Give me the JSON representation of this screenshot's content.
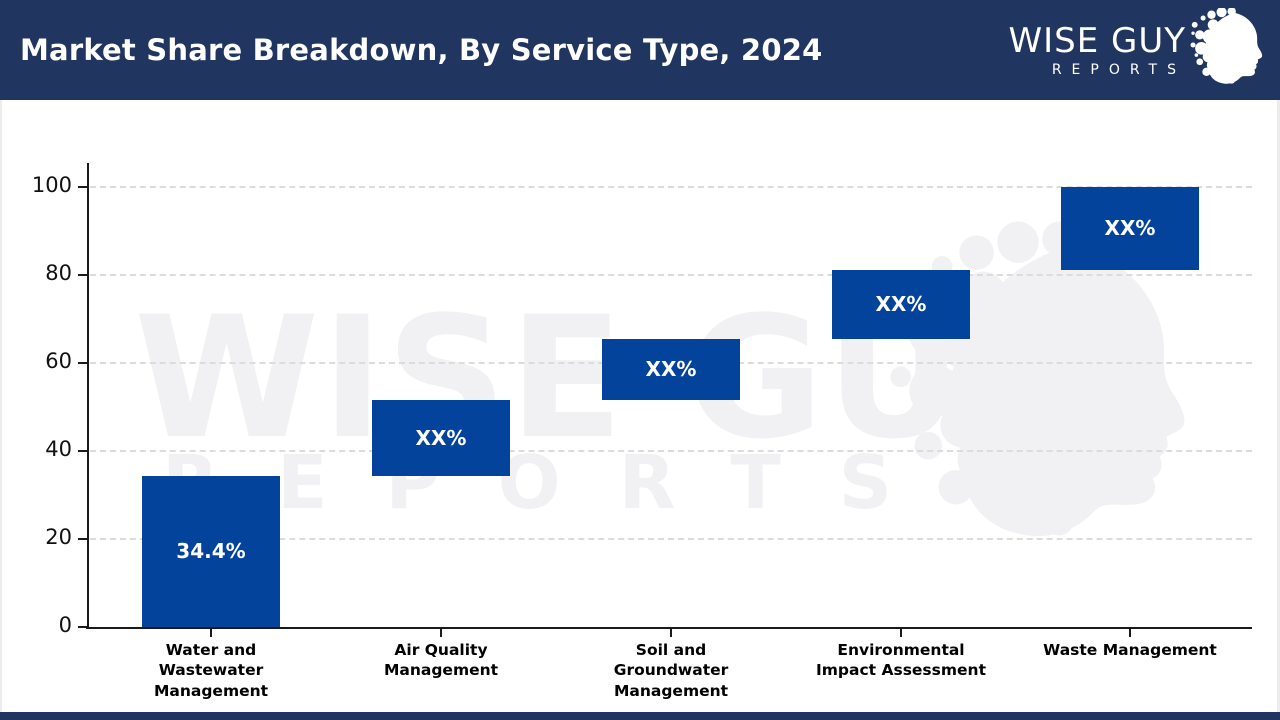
{
  "header": {
    "title": "Market Share Breakdown, By Service Type, 2024",
    "logo": {
      "name": "WISE GUY",
      "tagline": "REPORTS"
    }
  },
  "watermark": {
    "name": "WISE GUY",
    "tagline": "REPORTS"
  },
  "colors": {
    "header_bg": "#213561",
    "footer_bg": "#213561",
    "logo_fg": "#ffffff",
    "bar": "#04439b",
    "bar_label": "#ffffff",
    "grid": "#dcdcdc",
    "axis": "#1a1a1a",
    "tick_label": "#111111",
    "category_label": "#000000",
    "watermark": "#f1f1f4"
  },
  "chart_data": {
    "type": "bar",
    "variant": "waterfall",
    "title": "Market Share Breakdown, By Service Type, 2024",
    "categories": [
      "Water and\nWastewater\nManagement",
      "Air Quality\nManagement",
      "Soil and\nGroundwater\nManagement",
      "Environmental\nImpact Assessment",
      "Waste Management"
    ],
    "segments": [
      {
        "category": "Water and Wastewater Management",
        "start": 0,
        "end": 34.4,
        "label": "34.4%"
      },
      {
        "category": "Air Quality Management",
        "start": 34.4,
        "end": 51.6,
        "label": "XX%"
      },
      {
        "category": "Soil and Groundwater Management",
        "start": 51.6,
        "end": 65.5,
        "label": "XX%"
      },
      {
        "category": "Environmental Impact Assessment",
        "start": 65.5,
        "end": 81.2,
        "label": "XX%"
      },
      {
        "category": "Waste Management",
        "start": 81.2,
        "end": 100,
        "label": "XX%"
      }
    ],
    "ylim": [
      0,
      100
    ],
    "yticks": [
      0,
      20,
      40,
      60,
      80,
      100
    ],
    "grid": "horizontal-dashed",
    "legend": "none"
  }
}
